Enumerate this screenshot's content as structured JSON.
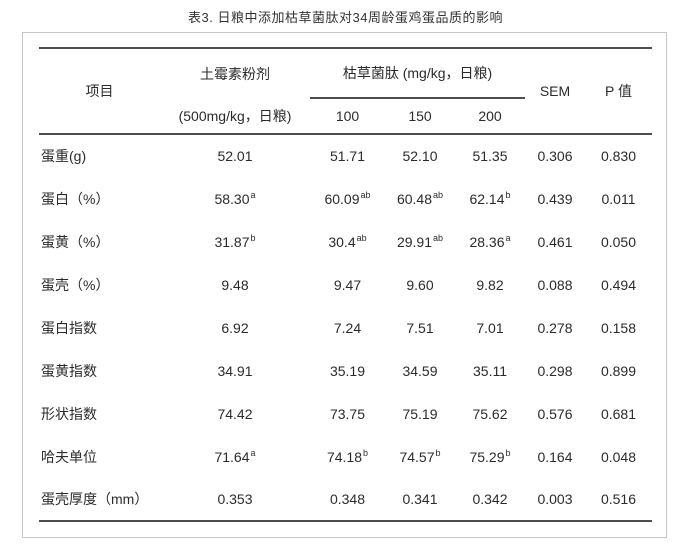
{
  "title": "表3. 日粮中添加枯草菌肽对34周龄蛋鸡蛋品质的影响",
  "table": {
    "header": {
      "item": "项目",
      "control_top": "土霉素粉剂",
      "control_bottom": "(500mg/kg，日粮)",
      "treatment": "枯草菌肽 (mg/kg，日粮)",
      "doses": [
        "100",
        "150",
        "200"
      ],
      "sem": "SEM",
      "p_value": "P 值"
    },
    "rows": [
      {
        "label": "蛋重(g)",
        "control": {
          "text": "52.01",
          "sup": ""
        },
        "doses": [
          {
            "text": "51.71",
            "sup": ""
          },
          {
            "text": "52.10",
            "sup": ""
          },
          {
            "text": "51.35",
            "sup": ""
          }
        ],
        "sem": "0.306",
        "p": "0.830"
      },
      {
        "label": "蛋白（%）",
        "control": {
          "text": "58.30",
          "sup": "a"
        },
        "doses": [
          {
            "text": "60.09",
            "sup": "ab"
          },
          {
            "text": "60.48",
            "sup": "ab"
          },
          {
            "text": "62.14",
            "sup": "b"
          }
        ],
        "sem": "0.439",
        "p": "0.011"
      },
      {
        "label": "蛋黄（%）",
        "control": {
          "text": "31.87",
          "sup": "b"
        },
        "doses": [
          {
            "text": "30.4",
            "sup": "ab"
          },
          {
            "text": "29.91",
            "sup": "ab"
          },
          {
            "text": "28.36",
            "sup": "a"
          }
        ],
        "sem": "0.461",
        "p": "0.050"
      },
      {
        "label": "蛋壳（%）",
        "control": {
          "text": "9.48",
          "sup": ""
        },
        "doses": [
          {
            "text": "9.47",
            "sup": ""
          },
          {
            "text": "9.60",
            "sup": ""
          },
          {
            "text": "9.82",
            "sup": ""
          }
        ],
        "sem": "0.088",
        "p": "0.494"
      },
      {
        "label": "蛋白指数",
        "control": {
          "text": "6.92",
          "sup": ""
        },
        "doses": [
          {
            "text": "7.24",
            "sup": ""
          },
          {
            "text": "7.51",
            "sup": ""
          },
          {
            "text": "7.01",
            "sup": ""
          }
        ],
        "sem": "0.278",
        "p": "0.158"
      },
      {
        "label": "蛋黄指数",
        "control": {
          "text": "34.91",
          "sup": ""
        },
        "doses": [
          {
            "text": "35.19",
            "sup": ""
          },
          {
            "text": "34.59",
            "sup": ""
          },
          {
            "text": "35.11",
            "sup": ""
          }
        ],
        "sem": "0.298",
        "p": "0.899"
      },
      {
        "label": "形状指数",
        "control": {
          "text": "74.42",
          "sup": ""
        },
        "doses": [
          {
            "text": "73.75",
            "sup": ""
          },
          {
            "text": "75.19",
            "sup": ""
          },
          {
            "text": "75.62",
            "sup": ""
          }
        ],
        "sem": "0.576",
        "p": "0.681"
      },
      {
        "label": "哈夫单位",
        "control": {
          "text": "71.64",
          "sup": "a"
        },
        "doses": [
          {
            "text": "74.18",
            "sup": "b"
          },
          {
            "text": "74.57",
            "sup": "b"
          },
          {
            "text": "75.29",
            "sup": "b"
          }
        ],
        "sem": "0.164",
        "p": "0.048"
      },
      {
        "label": "蛋壳厚度（mm）",
        "control": {
          "text": "0.353",
          "sup": ""
        },
        "doses": [
          {
            "text": "0.348",
            "sup": ""
          },
          {
            "text": "0.341",
            "sup": ""
          },
          {
            "text": "0.342",
            "sup": ""
          }
        ],
        "sem": "0.003",
        "p": "0.516"
      }
    ]
  },
  "colors": {
    "text": "#2b2b2b",
    "rule": "#4d4d4d",
    "panel_border": "#c6c6c6",
    "background": "#ffffff"
  }
}
